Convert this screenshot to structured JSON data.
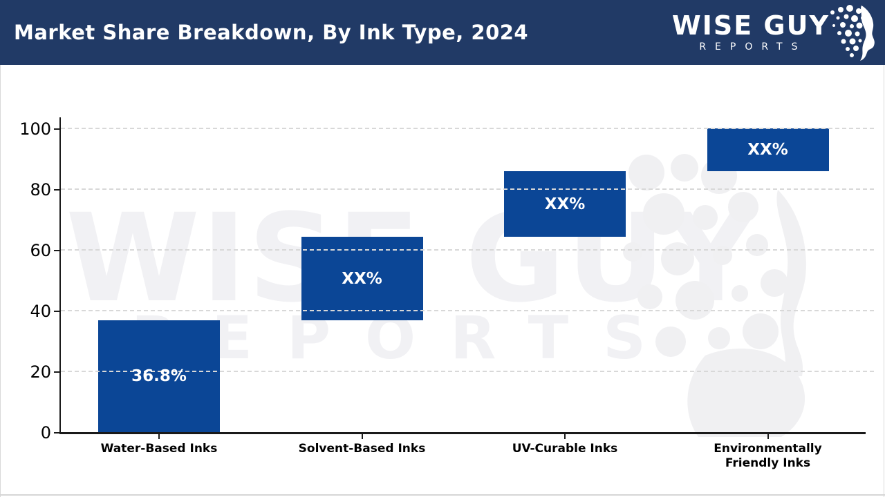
{
  "header": {
    "title": "Market Share Breakdown, By Ink Type, 2024",
    "bg_color": "#213a66",
    "logo": {
      "line1": "WISE GUY",
      "line2": "REPORTS"
    }
  },
  "watermark": {
    "line1": "WISE GUY",
    "line2": "REPORTS"
  },
  "chart_data": {
    "type": "bar",
    "subtype": "waterfall",
    "title": "Market Share Breakdown, By Ink Type, 2024",
    "categories": [
      "Water-Based Inks",
      "Solvent-Based Inks",
      "UV-Curable Inks",
      "Environmentally Friendly Inks"
    ],
    "series": [
      {
        "name": "Market Share",
        "segments": [
          {
            "category": "Water-Based Inks",
            "start": 0,
            "end": 36.8,
            "label": "36.8%"
          },
          {
            "category": "Solvent-Based Inks",
            "start": 36.8,
            "end": 64.3,
            "label": "XX%"
          },
          {
            "category": "UV-Curable Inks",
            "start": 64.3,
            "end": 85.9,
            "label": "XX%"
          },
          {
            "category": "Environmentally Friendly Inks",
            "start": 85.9,
            "end": 100,
            "label": "XX%"
          }
        ]
      }
    ],
    "xlabel": "",
    "ylabel": "",
    "ylim": [
      0,
      100
    ],
    "yticks": [
      0,
      20,
      40,
      60,
      80,
      100
    ],
    "grid": "horizontal-dashed",
    "legend": "none",
    "bar_color": "#0b4696",
    "bar_label_color": "#ffffff",
    "gridline_color": "#d8d8d8",
    "axis_color": "#1a1a1a"
  }
}
